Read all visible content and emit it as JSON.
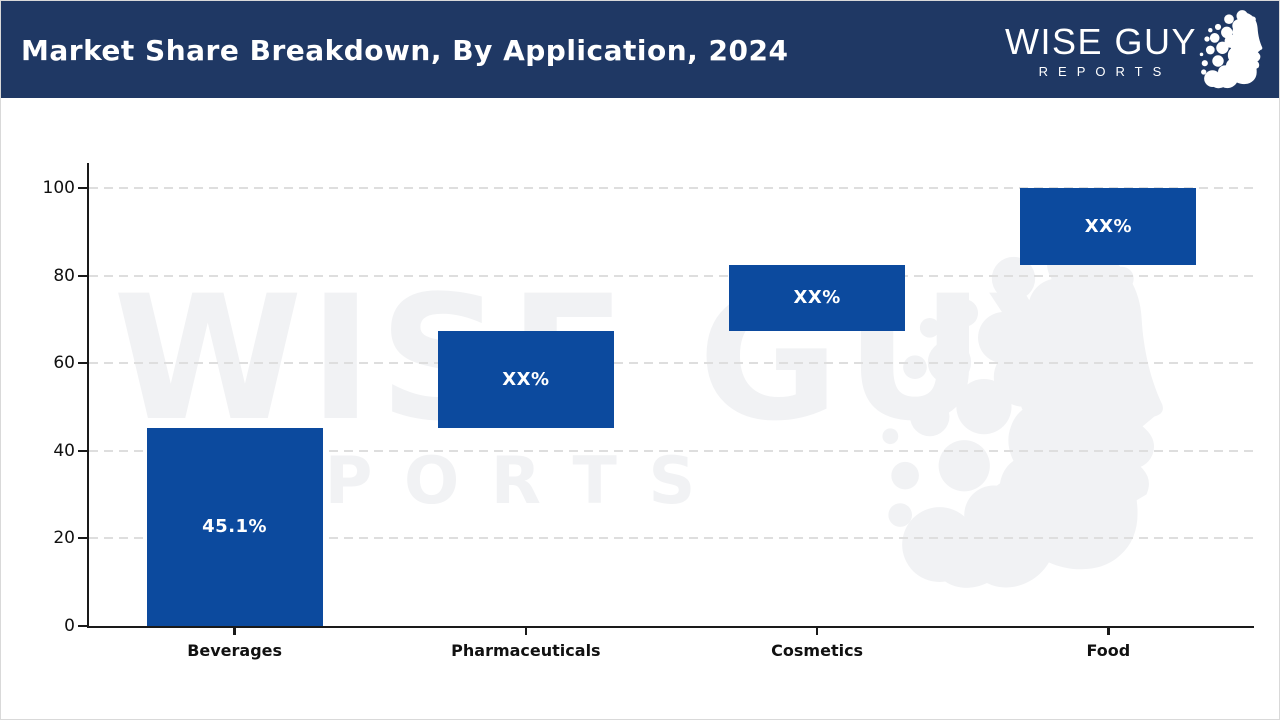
{
  "header": {
    "title": "Market Share Breakdown, By Application, 2024",
    "logo": {
      "line1": "WISE GUY",
      "line2": "REPORTS"
    }
  },
  "watermark": {
    "line1": "WISE GUY",
    "line2": "R E P O R T S"
  },
  "colors": {
    "header_bg": "#1f3864",
    "bar_fill": "#0c4a9e",
    "bar_label": "#ffffff",
    "grid": "#dedede",
    "axis": "#1a1a1a",
    "watermark": "#f1f2f4",
    "page_border": "#d9d9d9"
  },
  "chart_data": {
    "type": "bar",
    "subtype": "waterfall",
    "title": "Market Share Breakdown, By Application, 2024",
    "categories": [
      "Beverages",
      "Pharmaceuticals",
      "Cosmetics",
      "Food"
    ],
    "bars": [
      {
        "category": "Beverages",
        "start": 0,
        "end": 45.1,
        "label": "45.1%"
      },
      {
        "category": "Pharmaceuticals",
        "start": 45.1,
        "end": 67.4,
        "label": "XX%"
      },
      {
        "category": "Cosmetics",
        "start": 67.4,
        "end": 82.5,
        "label": "XX%"
      },
      {
        "category": "Food",
        "start": 82.5,
        "end": 100,
        "label": "XX%"
      }
    ],
    "ylim": [
      0,
      100
    ],
    "yticks": [
      0,
      20,
      40,
      60,
      80,
      100
    ],
    "grid": "horizontal-dashed",
    "legend": "none",
    "xlabel": "",
    "ylabel": ""
  }
}
